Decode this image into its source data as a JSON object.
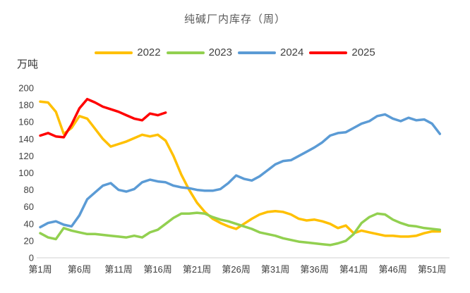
{
  "title": "纯碱厂内库存（周）",
  "y_unit_label": "万吨",
  "chart_data": {
    "type": "line",
    "title": "纯碱厂内库存（周）",
    "ylabel": "万吨",
    "ylim": [
      0,
      200
    ],
    "ytick_step": 20,
    "grid": false,
    "legend_position": "top",
    "x_unit": "week",
    "x_range": [
      1,
      52
    ],
    "x_ticks": [
      {
        "week": 1,
        "label": "第1周"
      },
      {
        "week": 6,
        "label": "第6周"
      },
      {
        "week": 11,
        "label": "第11周"
      },
      {
        "week": 16,
        "label": "第16周"
      },
      {
        "week": 21,
        "label": "第21周"
      },
      {
        "week": 26,
        "label": "第26周"
      },
      {
        "week": 31,
        "label": "第31周"
      },
      {
        "week": 36,
        "label": "第36周"
      },
      {
        "week": 41,
        "label": "第41周"
      },
      {
        "week": 46,
        "label": "第46周"
      },
      {
        "week": 51,
        "label": "第51周"
      }
    ],
    "series": [
      {
        "name": "2022",
        "color": "#FFC000",
        "values": [
          184,
          183,
          172,
          146,
          153,
          167,
          164,
          152,
          140,
          131,
          134,
          137,
          141,
          145,
          143,
          145,
          138,
          120,
          98,
          80,
          65,
          54,
          46,
          41,
          37,
          34,
          40,
          46,
          51,
          54,
          55,
          54,
          51,
          46,
          44,
          45,
          43,
          40,
          35,
          38,
          29,
          32,
          30,
          28,
          26,
          26,
          25,
          25,
          26,
          29,
          31,
          31
        ]
      },
      {
        "name": "2023",
        "color": "#92D050",
        "values": [
          29,
          24,
          22,
          35,
          32,
          30,
          28,
          28,
          27,
          26,
          25,
          24,
          26,
          24,
          30,
          33,
          40,
          47,
          52,
          52,
          53,
          52,
          48,
          45,
          43,
          40,
          37,
          34,
          30,
          28,
          26,
          23,
          21,
          19,
          18,
          17,
          16,
          15,
          17,
          20,
          28,
          41,
          48,
          52,
          51,
          45,
          41,
          38,
          37,
          35,
          34,
          33
        ]
      },
      {
        "name": "2024",
        "color": "#5B9BD5",
        "values": [
          36,
          41,
          43,
          39,
          37,
          50,
          69,
          77,
          85,
          88,
          80,
          78,
          81,
          89,
          92,
          90,
          89,
          85,
          83,
          82,
          80,
          79,
          79,
          81,
          88,
          97,
          93,
          91,
          96,
          103,
          110,
          114,
          115,
          120,
          125,
          130,
          136,
          144,
          147,
          148,
          153,
          158,
          161,
          167,
          169,
          164,
          161,
          165,
          162,
          163,
          158,
          146
        ]
      },
      {
        "name": "2025",
        "color": "#FF0000",
        "values": [
          144,
          147,
          143,
          142,
          157,
          176,
          187,
          183,
          178,
          175,
          172,
          168,
          164,
          162,
          170,
          168,
          171
        ]
      }
    ]
  },
  "style": {
    "axis_line_color": "#D9D9D9",
    "tick_label_color": "#404040",
    "title_color": "#595959"
  }
}
